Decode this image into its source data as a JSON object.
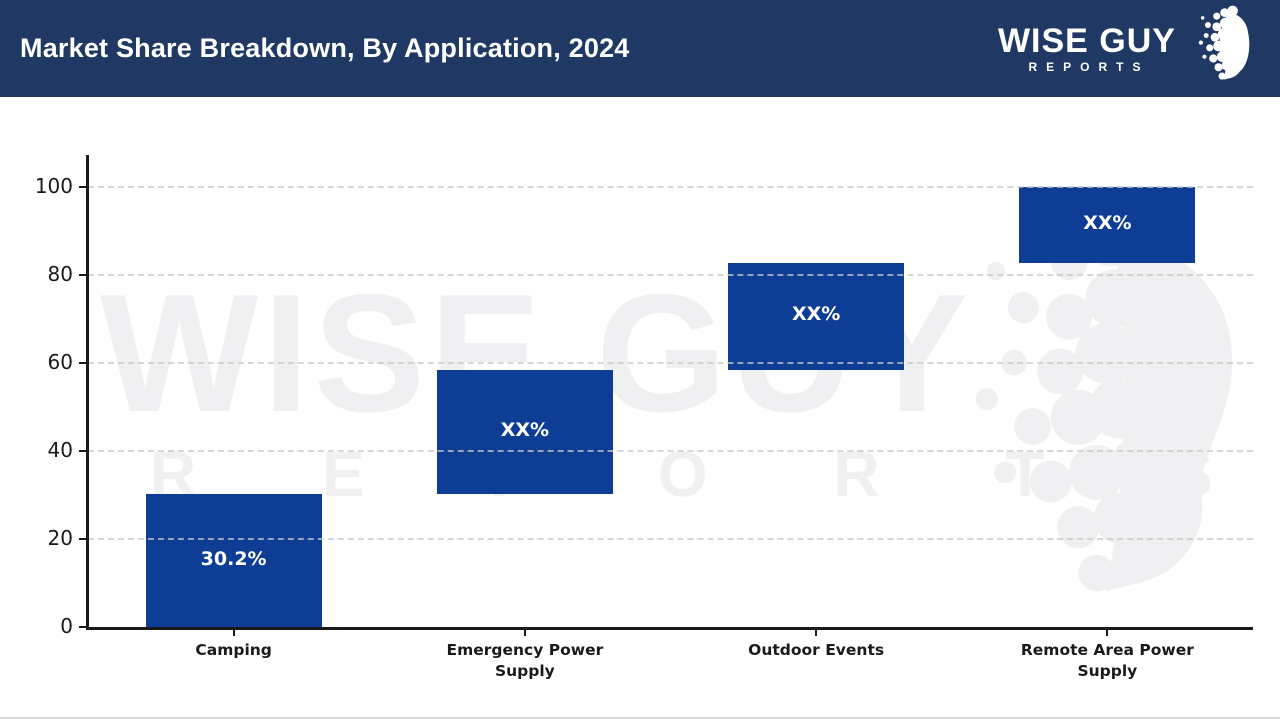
{
  "header": {
    "title": "Market Share Breakdown, By Application, 2024",
    "logo": {
      "line1": "WISE GUY",
      "line2": "REPORTS"
    }
  },
  "watermark": {
    "word": "WISE GUY",
    "sub": "R E P O R T S"
  },
  "colors": {
    "header_bg": "#1f3864",
    "bar_blue": "#0d3d94",
    "bar_label_text": "#ffffff",
    "watermark_gray": "#f0f0f2",
    "gridline_gray": "#c8c8c8",
    "axis_black": "#1a1a1a"
  },
  "chart_data": {
    "type": "bar",
    "variant": "waterfall",
    "title": "Market Share Breakdown, By Application, 2024",
    "xlabel": "",
    "ylabel": "",
    "ylim": [
      0,
      107
    ],
    "yticks": [
      0,
      20,
      40,
      60,
      80,
      100
    ],
    "grid": "horizontal-dashed-over-bars",
    "legend": "none",
    "categories": [
      {
        "name": "Camping",
        "lines": [
          "Camping"
        ],
        "start": 0,
        "end": 30.2,
        "label": "30.2%"
      },
      {
        "name": "Emergency Power Supply",
        "lines": [
          "Emergency Power",
          "Supply"
        ],
        "start": 30.2,
        "end": 58.4,
        "label": "XX%"
      },
      {
        "name": "Outdoor Events",
        "lines": [
          "Outdoor Events"
        ],
        "start": 58.4,
        "end": 82.8,
        "label": "XX%"
      },
      {
        "name": "Remote Area Power Supply",
        "lines": [
          "Remote Area Power",
          "Supply"
        ],
        "start": 82.8,
        "end": 100,
        "label": "XX%"
      }
    ]
  }
}
